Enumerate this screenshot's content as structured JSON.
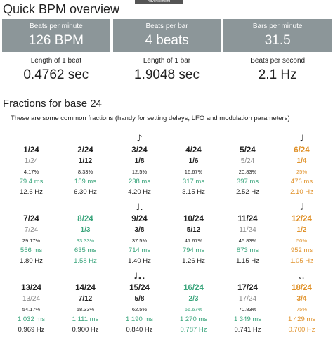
{
  "ad_label": "Advertisement",
  "overview": {
    "title": "Quick BPM overview",
    "boxes": [
      {
        "label": "Beats per minute",
        "value": "126 BPM"
      },
      {
        "label": "Beats per bar",
        "value": "4 beats"
      },
      {
        "label": "Bars per minute",
        "value": "31.5"
      }
    ],
    "stats": [
      {
        "label": "Length of 1 beat",
        "value": "0.4762 sec"
      },
      {
        "label": "Length of 1 bar",
        "value": "1.9048 sec"
      },
      {
        "label": "Beats per second",
        "value": "2.1 Hz"
      }
    ]
  },
  "fractions": {
    "title": "Fractions for base 24",
    "description": "These are some common fractions (handy for setting delays, LFO and modulation parameters)",
    "colors": {
      "green": "#3aa57c",
      "orange": "#e0922b",
      "gray": "#888888",
      "box": "#8c9699"
    },
    "items": [
      {
        "fraction": "1/24",
        "simplified": "1/24",
        "percent": "4.17%",
        "ms": "79.4 ms",
        "hz": "12.6 Hz",
        "note": "",
        "style": "normal"
      },
      {
        "fraction": "2/24",
        "simplified": "1/12",
        "percent": "8.33%",
        "ms": "159 ms",
        "hz": "6.30 Hz",
        "note": "",
        "style": "standard"
      },
      {
        "fraction": "3/24",
        "simplified": "1/8",
        "percent": "12.5%",
        "ms": "238 ms",
        "hz": "4.20 Hz",
        "note": "♪",
        "style": "standard"
      },
      {
        "fraction": "4/24",
        "simplified": "1/6",
        "percent": "16.67%",
        "ms": "317 ms",
        "hz": "3.15 Hz",
        "note": "",
        "style": "standard"
      },
      {
        "fraction": "5/24",
        "simplified": "5/24",
        "percent": "20.83%",
        "ms": "397 ms",
        "hz": "2.52 Hz",
        "note": "",
        "style": "normal"
      },
      {
        "fraction": "6/24",
        "simplified": "1/4",
        "percent": "25%",
        "ms": "476 ms",
        "hz": "2.10 Hz",
        "note": "♩",
        "style": "orange"
      },
      {
        "fraction": "7/24",
        "simplified": "7/24",
        "percent": "29.17%",
        "ms": "556 ms",
        "hz": "1.80 Hz",
        "note": "",
        "style": "normal"
      },
      {
        "fraction": "8/24",
        "simplified": "1/3",
        "percent": "33.33%",
        "ms": "635 ms",
        "hz": "1.58 Hz",
        "note": "",
        "style": "green"
      },
      {
        "fraction": "9/24",
        "simplified": "3/8",
        "percent": "37.5%",
        "ms": "714 ms",
        "hz": "1.40 Hz",
        "note": "♩.",
        "style": "standard"
      },
      {
        "fraction": "10/24",
        "simplified": "5/12",
        "percent": "41.67%",
        "ms": "794 ms",
        "hz": "1.26 Hz",
        "note": "",
        "style": "standard"
      },
      {
        "fraction": "11/24",
        "simplified": "11/24",
        "percent": "45.83%",
        "ms": "873 ms",
        "hz": "1.15 Hz",
        "note": "",
        "style": "normal"
      },
      {
        "fraction": "12/24",
        "simplified": "1/2",
        "percent": "50%",
        "ms": "952 ms",
        "hz": "1.05 Hz",
        "note": "𝅗𝅥",
        "style": "orange"
      },
      {
        "fraction": "13/24",
        "simplified": "13/24",
        "percent": "54.17%",
        "ms": "1 032 ms",
        "hz": "0.969 Hz",
        "note": "",
        "style": "normal"
      },
      {
        "fraction": "14/24",
        "simplified": "7/12",
        "percent": "58.33%",
        "ms": "1 111 ms",
        "hz": "0.900 Hz",
        "note": "",
        "style": "standard"
      },
      {
        "fraction": "15/24",
        "simplified": "5/8",
        "percent": "62.5%",
        "ms": "1 190 ms",
        "hz": "0.840 Hz",
        "note": "♩♩.",
        "style": "standard"
      },
      {
        "fraction": "16/24",
        "simplified": "2/3",
        "percent": "66.67%",
        "ms": "1 270 ms",
        "hz": "0.787 Hz",
        "note": "",
        "style": "green"
      },
      {
        "fraction": "17/24",
        "simplified": "17/24",
        "percent": "70.83%",
        "ms": "1 349 ms",
        "hz": "0.741 Hz",
        "note": "",
        "style": "normal"
      },
      {
        "fraction": "18/24",
        "simplified": "3/4",
        "percent": "75%",
        "ms": "1 429 ms",
        "hz": "0.700 Hz",
        "note": "𝅗𝅥.",
        "style": "orange"
      }
    ]
  }
}
